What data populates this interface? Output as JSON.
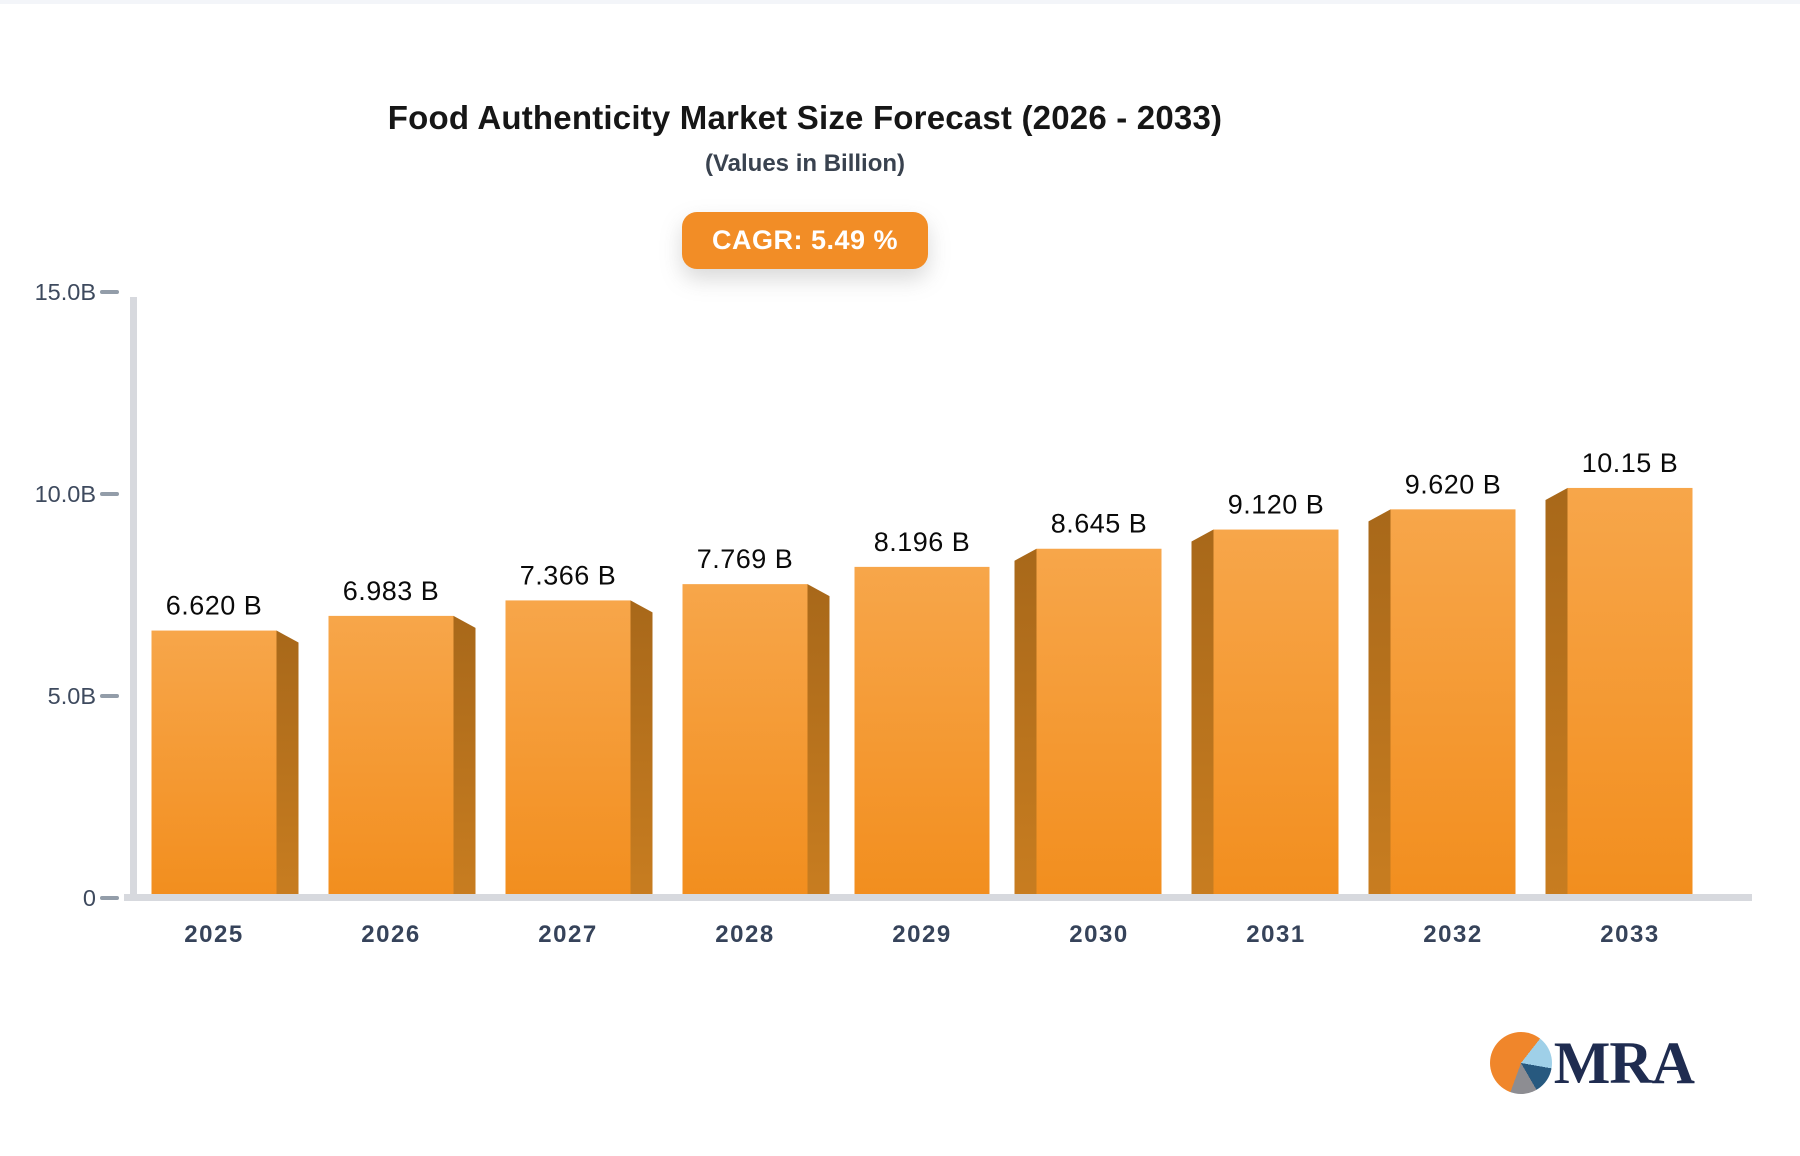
{
  "header": {
    "badge_color": "#f28d26"
  },
  "chart_data": {
    "type": "bar",
    "title": "Food Authenticity Market Size Forecast (2026 - 2033)",
    "subtitle": "(Values in Billion)",
    "cagr_label": "CAGR: 5.49 %",
    "categories": [
      "2025",
      "2026",
      "2027",
      "2028",
      "2029",
      "2030",
      "2031",
      "2032",
      "2033"
    ],
    "values": [
      6.62,
      6.983,
      7.366,
      7.769,
      8.196,
      8.645,
      9.12,
      9.62,
      10.15
    ],
    "value_labels": [
      "6.620 B",
      "6.983 B",
      "7.366 B",
      "7.769 B",
      "8.196 B",
      "8.645 B",
      "9.120 B",
      "9.620 B",
      "10.15 B"
    ],
    "xlabel": "",
    "ylabel": "",
    "ylim": [
      0,
      15
    ],
    "yticks": [
      {
        "v": 0,
        "label": "0"
      },
      {
        "v": 5,
        "label": "5.0B"
      },
      {
        "v": 10,
        "label": "10.0B"
      },
      {
        "v": 15,
        "label": "15.0B"
      }
    ],
    "grid": false,
    "legend": false,
    "bar_style": "3d-perspective-toward-center",
    "colors": {
      "face_top": "#f7a64a",
      "face_bottom": "#f28e1e",
      "side_top": "#a8681a",
      "side_bottom": "#c87d20",
      "axis": "#d7d9de",
      "tick": "#939da9",
      "tick_label": "#3e4a5e",
      "x_label": "#36435a",
      "value_label": "#0a0a0a"
    }
  },
  "logo": {
    "text": "MRA",
    "pie_colors": [
      "#f0862b",
      "#9fd0e8",
      "#27597f",
      "#8d8d92"
    ]
  }
}
